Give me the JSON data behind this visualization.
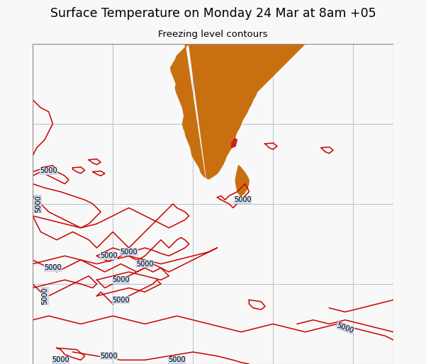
{
  "title": "Surface Temperature on Monday 24 Mar at 8am +05",
  "subtitle": "Freezing level contours",
  "title_fontsize": 12.5,
  "subtitle_fontsize": 9.5,
  "ocean_color": "#ccd8eb",
  "land_color": "#c87010",
  "land_color2": "#d08018",
  "contour_color": "#cc0000",
  "grid_color": "#b0bfd0",
  "title_bg": "#f8f8f8",
  "xlim": [
    55,
    100
  ],
  "ylim": [
    -15,
    25
  ],
  "figsize": [
    6.01,
    5.14
  ],
  "dpi": 100,
  "contour_label_fontsize": 7,
  "contour_lw": 1.1
}
